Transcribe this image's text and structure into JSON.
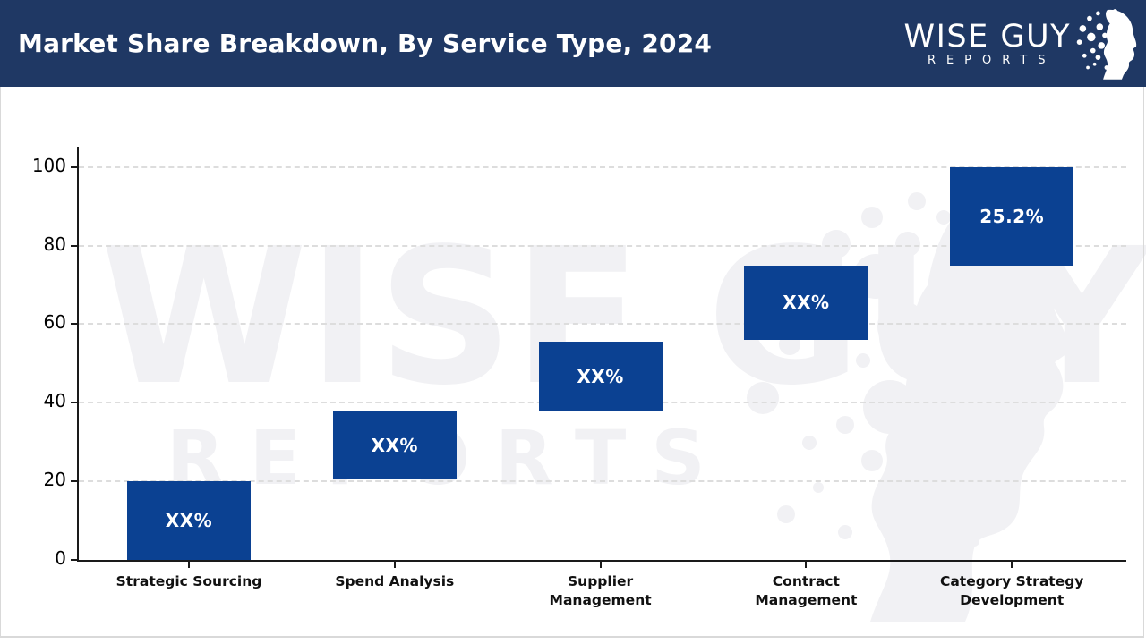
{
  "header": {
    "title": "Market Share Breakdown, By Service Type, 2024",
    "logo": {
      "line1": "WISE GUY",
      "line2": "REPORTS"
    }
  },
  "watermark": {
    "line1": "WISE GUY",
    "line2": "REPORTS"
  },
  "colors": {
    "header_bg": "#1f3864",
    "header_text": "#ffffff",
    "bar": "#0b4192",
    "bar_label": "#ffffff",
    "grid": "#dddddd",
    "axis": "#1a1a1a",
    "watermark": "#f1f1f4"
  },
  "chart_data": {
    "type": "bar",
    "subtype": "waterfall",
    "title": "Market Share Breakdown, By Service Type, 2024",
    "xlabel": "",
    "ylabel": "",
    "ylim": [
      0,
      105
    ],
    "yticks": [
      0,
      20,
      40,
      60,
      80,
      100
    ],
    "grid": "horizontal-dashed",
    "legend": "none",
    "categories": [
      "Strategic Sourcing",
      "Spend Analysis",
      "Supplier Management",
      "Contract Management",
      "Category Strategy Development"
    ],
    "segments": [
      {
        "category": "Strategic Sourcing",
        "category_lines": [
          "Strategic Sourcing"
        ],
        "start": 0,
        "end": 20,
        "label": "XX%"
      },
      {
        "category": "Spend Analysis",
        "category_lines": [
          "Spend Analysis"
        ],
        "start": 20.5,
        "end": 38,
        "label": "XX%"
      },
      {
        "category": "Supplier Management",
        "category_lines": [
          "Supplier",
          "Management"
        ],
        "start": 38,
        "end": 55.5,
        "label": "XX%"
      },
      {
        "category": "Contract Management",
        "category_lines": [
          "Contract",
          "Management"
        ],
        "start": 56,
        "end": 75,
        "label": "XX%"
      },
      {
        "category": "Category Strategy Development",
        "category_lines": [
          "Category Strategy",
          "Development"
        ],
        "start": 74.8,
        "end": 100,
        "label": "25.2%"
      }
    ]
  }
}
